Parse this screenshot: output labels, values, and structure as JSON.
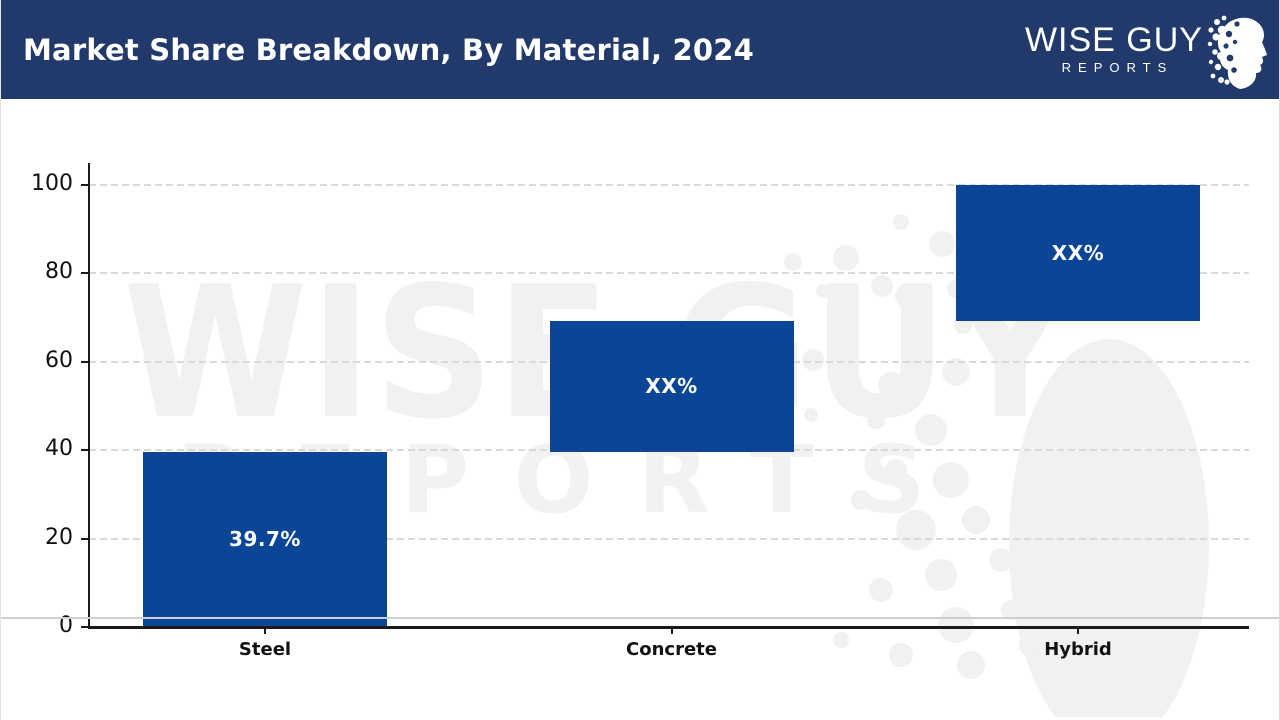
{
  "header": {
    "title": "Market Share Breakdown, By Material, 2024",
    "logo": {
      "line1": "WISE GUY",
      "line2": "REPORTS"
    }
  },
  "watermark": {
    "line1": "WISE GUY",
    "line2": "REPORTS"
  },
  "chart_data": {
    "type": "bar",
    "subtype": "waterfall",
    "title": "Market Share Breakdown, By Material, 2024",
    "categories": [
      "Steel",
      "Concrete",
      "Hybrid"
    ],
    "bars": [
      {
        "category": "Steel",
        "start": 0,
        "end": 39.7,
        "label": "39.7%"
      },
      {
        "category": "Concrete",
        "start": 39.7,
        "end": 69.2,
        "label": "XX%"
      },
      {
        "category": "Hybrid",
        "start": 69.2,
        "end": 100,
        "label": "XX%"
      }
    ],
    "ylim": [
      0,
      100
    ],
    "yticks": [
      0,
      20,
      40,
      60,
      80,
      100
    ],
    "xlabel": "",
    "ylabel": "",
    "grid": "horizontal-dashed",
    "legend": "none",
    "bar_color": "#0a4596",
    "bar_label_color": "#ffffff"
  },
  "colors": {
    "header_bg": "#213a6b",
    "bar": "#0a4596",
    "grid": "#d9d9d9",
    "axis": "#1a1a1a",
    "watermark": "#f1f1f3"
  }
}
